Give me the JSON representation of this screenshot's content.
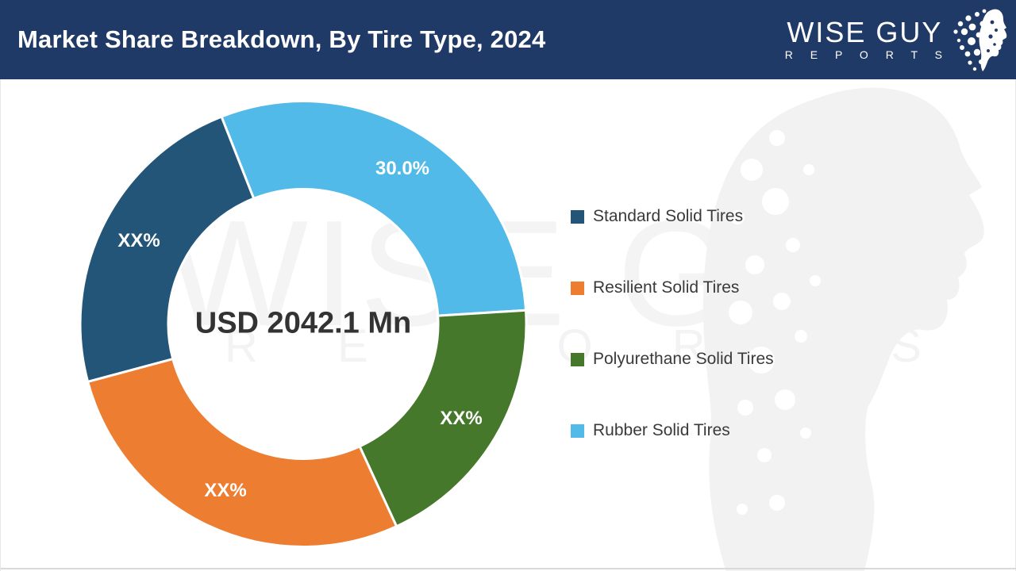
{
  "header": {
    "title": "Market Share Breakdown, By Tire Type, 2024",
    "bg_color": "#203a67",
    "logo": {
      "line1": "WISE GUY",
      "line2": "R E P O R T S"
    }
  },
  "watermark": {
    "line1": "WISE GUY",
    "line2": "R E P O R T S"
  },
  "chart_data": {
    "type": "donut",
    "title": "Market Share Breakdown, By Tire Type, 2024",
    "center_label": "USD 2042.1 Mn",
    "start_angle_deg": -21.5,
    "direction": "clockwise",
    "slices": [
      {
        "label": "Rubber Solid Tires",
        "display_label": "30.0%",
        "percent": 30.0,
        "color": "#52bae8"
      },
      {
        "label": "Polyurethane Solid Tires",
        "display_label": "XX%",
        "percent": 19.1,
        "color": "#45782a"
      },
      {
        "label": "Resilient Solid Tires",
        "display_label": "XX%",
        "percent": 27.7,
        "color": "#ed7d31"
      },
      {
        "label": "Standard Solid Tires",
        "display_label": "XX%",
        "percent": 23.2,
        "color": "#235578"
      }
    ],
    "legend": {
      "position": "right",
      "items": [
        {
          "label": "Standard Solid Tires",
          "color": "#235578"
        },
        {
          "label": "Resilient Solid Tires",
          "color": "#ed7d31"
        },
        {
          "label": "Polyurethane Solid Tires",
          "color": "#45782a"
        },
        {
          "label": "Rubber Solid Tires",
          "color": "#52bae8"
        }
      ]
    }
  }
}
